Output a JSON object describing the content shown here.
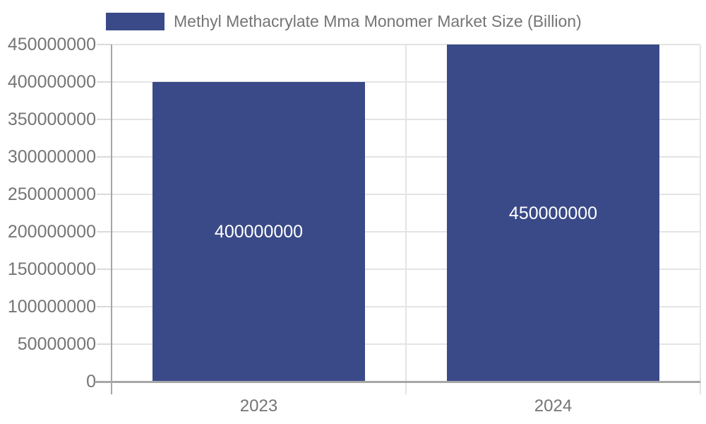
{
  "chart_data": {
    "type": "bar",
    "title": "Methyl Methacrylate Mma Monomer Market Size (Billion)",
    "categories": [
      "2023",
      "2024"
    ],
    "values": [
      400000000,
      450000000
    ],
    "value_labels": [
      "400000000",
      "450000000"
    ],
    "xlabel": "",
    "ylabel": "",
    "ylim": [
      0,
      450000000
    ],
    "ytick_step": 50000000,
    "ytick_values": [
      0,
      50000000,
      100000000,
      150000000,
      200000000,
      250000000,
      300000000,
      350000000,
      400000000,
      450000000
    ],
    "ytick_labels": [
      "0",
      "50000000",
      "100000000",
      "150000000",
      "200000000",
      "250000000",
      "300000000",
      "350000000",
      "400000000",
      "450000000"
    ],
    "grid": true,
    "legend_position": "top-left"
  },
  "colors": {
    "bar": "#3A4A88",
    "grid": "#E4E4E4",
    "axis": "#A6A6A6",
    "tick": "#DADADA",
    "axis_label_text": "#757575",
    "title_text": "#757575",
    "value_label_text": "#FFFFFF"
  }
}
